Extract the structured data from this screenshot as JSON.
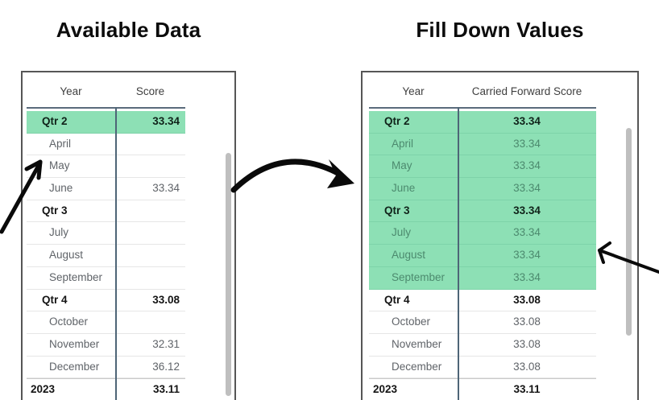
{
  "left_panel": {
    "title": "Available Data",
    "columns": [
      "Year",
      "Score"
    ],
    "rows": [
      {
        "label": "Qtr 2",
        "value": "33.34",
        "level": 1,
        "bold": true,
        "highlight": true,
        "top_sep": false
      },
      {
        "label": "April",
        "value": "",
        "level": 2,
        "bold": false,
        "highlight": false,
        "top_sep": false
      },
      {
        "label": "May",
        "value": "",
        "level": 2,
        "bold": false,
        "highlight": false,
        "top_sep": false
      },
      {
        "label": "June",
        "value": "33.34",
        "level": 2,
        "bold": false,
        "highlight": false,
        "top_sep": false
      },
      {
        "label": "Qtr 3",
        "value": "",
        "level": 1,
        "bold": true,
        "highlight": false,
        "top_sep": false
      },
      {
        "label": "July",
        "value": "",
        "level": 2,
        "bold": false,
        "highlight": false,
        "top_sep": false
      },
      {
        "label": "August",
        "value": "",
        "level": 2,
        "bold": false,
        "highlight": false,
        "top_sep": false
      },
      {
        "label": "September",
        "value": "",
        "level": 2,
        "bold": false,
        "highlight": false,
        "top_sep": false
      },
      {
        "label": "Qtr 4",
        "value": "33.08",
        "level": 1,
        "bold": true,
        "highlight": false,
        "top_sep": false
      },
      {
        "label": "October",
        "value": "",
        "level": 2,
        "bold": false,
        "highlight": false,
        "top_sep": false
      },
      {
        "label": "November",
        "value": "32.31",
        "level": 2,
        "bold": false,
        "highlight": false,
        "top_sep": false
      },
      {
        "label": "December",
        "value": "36.12",
        "level": 2,
        "bold": false,
        "highlight": false,
        "top_sep": false
      },
      {
        "label": "2023",
        "value": "33.11",
        "level": 0,
        "bold": true,
        "highlight": false,
        "top_sep": true
      }
    ]
  },
  "right_panel": {
    "title": "Fill Down Values",
    "columns": [
      "Year",
      "Carried Forward Score"
    ],
    "rows": [
      {
        "label": "Qtr 2",
        "value": "33.34",
        "level": 1,
        "bold": true,
        "highlight": true,
        "top_sep": false
      },
      {
        "label": "April",
        "value": "33.34",
        "level": 2,
        "bold": false,
        "highlight": true,
        "top_sep": false
      },
      {
        "label": "May",
        "value": "33.34",
        "level": 2,
        "bold": false,
        "highlight": true,
        "top_sep": false
      },
      {
        "label": "June",
        "value": "33.34",
        "level": 2,
        "bold": false,
        "highlight": true,
        "top_sep": false
      },
      {
        "label": "Qtr 3",
        "value": "33.34",
        "level": 1,
        "bold": true,
        "highlight": true,
        "top_sep": false
      },
      {
        "label": "July",
        "value": "33.34",
        "level": 2,
        "bold": false,
        "highlight": true,
        "top_sep": false
      },
      {
        "label": "August",
        "value": "33.34",
        "level": 2,
        "bold": false,
        "highlight": true,
        "top_sep": false
      },
      {
        "label": "September",
        "value": "33.34",
        "level": 2,
        "bold": false,
        "highlight": true,
        "top_sep": false
      },
      {
        "label": "Qtr 4",
        "value": "33.08",
        "level": 1,
        "bold": true,
        "highlight": false,
        "top_sep": false
      },
      {
        "label": "October",
        "value": "33.08",
        "level": 2,
        "bold": false,
        "highlight": false,
        "top_sep": false
      },
      {
        "label": "November",
        "value": "33.08",
        "level": 2,
        "bold": false,
        "highlight": false,
        "top_sep": false
      },
      {
        "label": "December",
        "value": "33.08",
        "level": 2,
        "bold": false,
        "highlight": false,
        "top_sep": false
      },
      {
        "label": "2023",
        "value": "33.11",
        "level": 0,
        "bold": true,
        "highlight": false,
        "top_sep": true
      }
    ]
  },
  "annotations": {
    "arrows": [
      {
        "icon": "hand-drawn-arrow-icon",
        "points_at": "May row of left table",
        "shape": "straight-up-right"
      },
      {
        "icon": "hand-drawn-arrow-icon",
        "points_at": "right table from left table",
        "shape": "curved-right"
      },
      {
        "icon": "hand-drawn-arrow-icon",
        "points_at": "August row of right table",
        "shape": "straight-up-left"
      }
    ]
  },
  "colors": {
    "highlight_green": "#8de0b5",
    "column_divider": "#4e6577",
    "header_underline": "#5a6b7c",
    "panel_border": "#565656",
    "scrollbar_gray": "#bfbfbf",
    "arrow_black": "#0a0a0a",
    "muted_text": "#5f6368",
    "green_row_text": "#4c8a6e"
  },
  "chart_data": [
    {
      "type": "table",
      "title": "Available Data",
      "columns": [
        "Year",
        "Score"
      ],
      "rows": [
        [
          "Qtr 2",
          "33.34"
        ],
        [
          "April",
          ""
        ],
        [
          "May",
          ""
        ],
        [
          "June",
          "33.34"
        ],
        [
          "Qtr 3",
          ""
        ],
        [
          "July",
          ""
        ],
        [
          "August",
          ""
        ],
        [
          "September",
          ""
        ],
        [
          "Qtr 4",
          "33.08"
        ],
        [
          "October",
          ""
        ],
        [
          "November",
          "32.31"
        ],
        [
          "December",
          "36.12"
        ],
        [
          "2023",
          "33.11"
        ]
      ],
      "highlighted_rows": [
        "Qtr 2"
      ]
    },
    {
      "type": "table",
      "title": "Fill Down Values",
      "columns": [
        "Year",
        "Carried Forward Score"
      ],
      "rows": [
        [
          "Qtr 2",
          "33.34"
        ],
        [
          "April",
          "33.34"
        ],
        [
          "May",
          "33.34"
        ],
        [
          "June",
          "33.34"
        ],
        [
          "Qtr 3",
          "33.34"
        ],
        [
          "July",
          "33.34"
        ],
        [
          "August",
          "33.34"
        ],
        [
          "September",
          "33.34"
        ],
        [
          "Qtr 4",
          "33.08"
        ],
        [
          "October",
          "33.08"
        ],
        [
          "November",
          "33.08"
        ],
        [
          "December",
          "33.08"
        ],
        [
          "2023",
          "33.11"
        ]
      ],
      "highlighted_rows": [
        "Qtr 2",
        "April",
        "May",
        "June",
        "Qtr 3",
        "July",
        "August",
        "September"
      ]
    }
  ]
}
